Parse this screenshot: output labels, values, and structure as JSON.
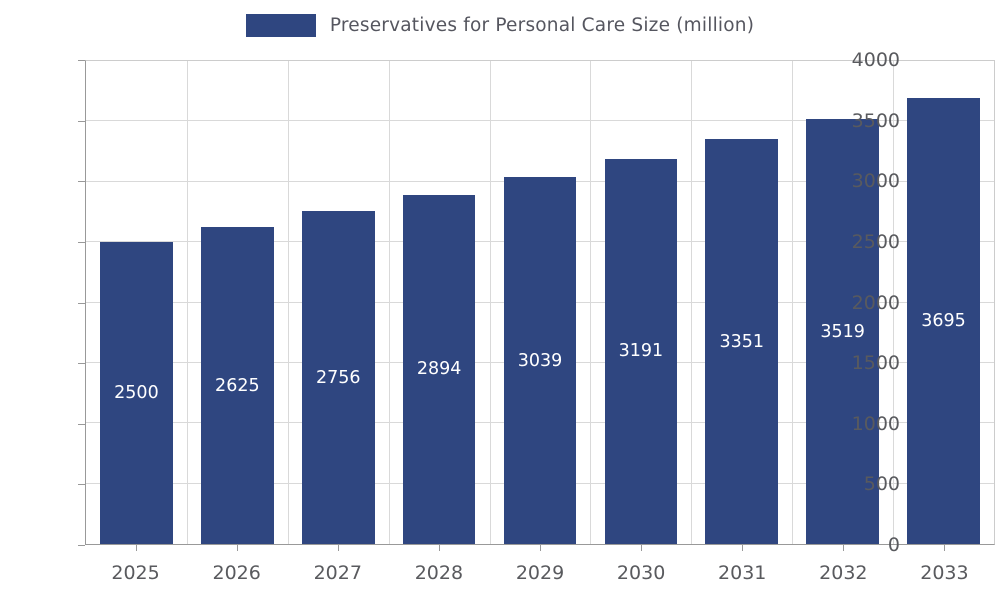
{
  "chart_data": {
    "type": "bar",
    "title": "Preservatives for Personal Care Size (million)",
    "categories": [
      "2025",
      "2026",
      "2027",
      "2028",
      "2029",
      "2030",
      "2031",
      "2032",
      "2033"
    ],
    "values": [
      2500,
      2625,
      2756,
      2894,
      3039,
      3191,
      3351,
      3519,
      3695
    ],
    "xlabel": "",
    "ylabel": "",
    "ylim": [
      0,
      4000
    ],
    "ytick_interval": 500,
    "grid": true,
    "legend_position": "top",
    "bar_color": "#2F4680",
    "bar_label_color": "#ffffff"
  }
}
